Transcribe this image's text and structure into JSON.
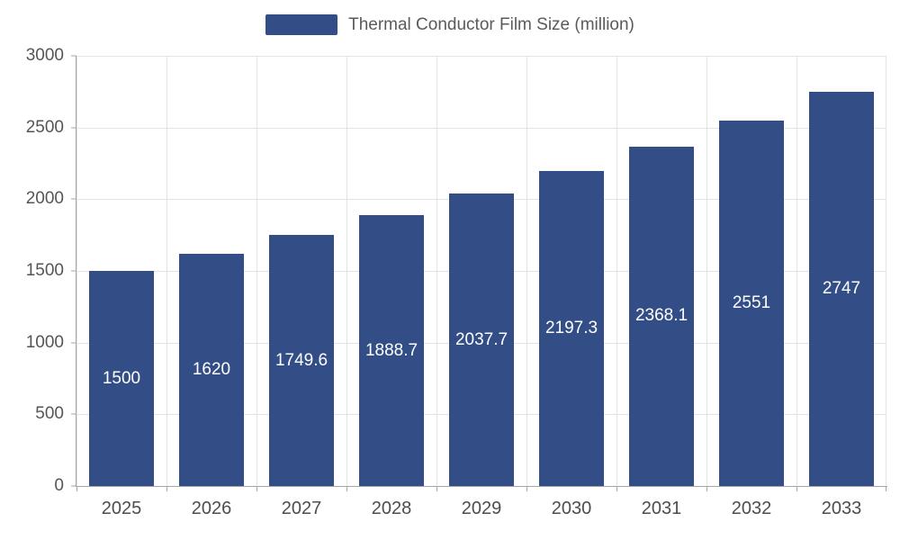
{
  "legend": {
    "label": "Thermal Conductor Film Size (million)"
  },
  "colors": {
    "bar": "#334e87",
    "grid": "#e3e3e3",
    "axis": "#a6a6a6",
    "tick_text": "#555555",
    "xtick_text": "#4d4d4d",
    "bar_label_text": "#ffffff",
    "legend_text": "#5a5a5a"
  },
  "chart_data": {
    "type": "bar",
    "title": "Thermal Conductor Film Size (million)",
    "categories": [
      "2025",
      "2026",
      "2027",
      "2028",
      "2029",
      "2030",
      "2031",
      "2032",
      "2033"
    ],
    "values": [
      1500,
      1620,
      1749.6,
      1888.7,
      2037.7,
      2197.3,
      2368.1,
      2551,
      2747
    ],
    "value_labels": [
      "1500",
      "1620",
      "1749.6",
      "1888.7",
      "2037.7",
      "2197.3",
      "2368.1",
      "2551",
      "2747"
    ],
    "xlabel": "",
    "ylabel": "",
    "ylim": [
      0,
      3000
    ],
    "yticks": [
      0,
      500,
      1000,
      1500,
      2000,
      2500,
      3000
    ],
    "grid": true,
    "legend_position": "top",
    "bar_label_position": "inside-middle"
  }
}
